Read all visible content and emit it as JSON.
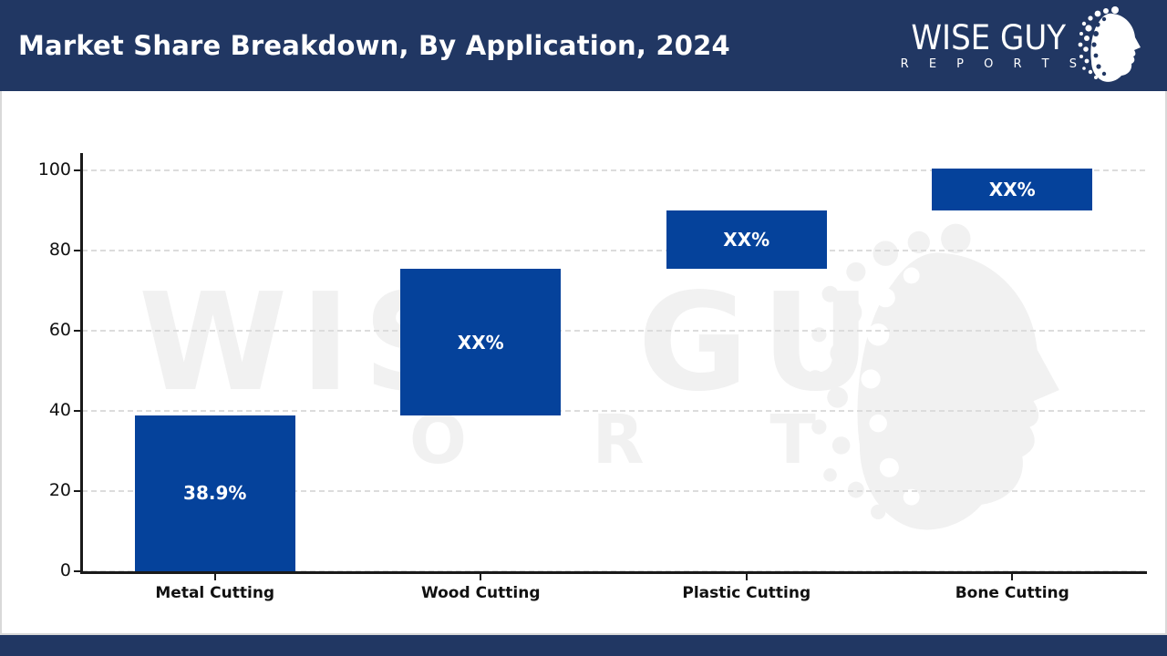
{
  "header": {
    "title": "Market Share Breakdown, By Application, 2024",
    "bg_color": "#213763",
    "logo": {
      "line1": "WISE GUY",
      "line2": "R E P O R T S"
    }
  },
  "watermark": {
    "line1": "WISE GUY",
    "line2": "P O R T S"
  },
  "footer": {
    "bg_color": "#213763"
  },
  "chart_data": {
    "type": "bar",
    "subtype": "waterfall",
    "title": "Market Share Breakdown, By Application, 2024",
    "categories": [
      "Metal Cutting",
      "Wood Cutting",
      "Plastic Cutting",
      "Bone Cutting"
    ],
    "segments": [
      {
        "category": "Metal Cutting",
        "start": 0,
        "end": 38.9,
        "label": "38.9%"
      },
      {
        "category": "Wood Cutting",
        "start": 38.9,
        "end": 75.4,
        "label": "XX%"
      },
      {
        "category": "Plastic Cutting",
        "start": 75.4,
        "end": 90.0,
        "label": "XX%"
      },
      {
        "category": "Bone Cutting",
        "start": 90.0,
        "end": 100.5,
        "label": "XX%"
      }
    ],
    "yticks": [
      0,
      20,
      40,
      60,
      80,
      100
    ],
    "ylim": [
      0,
      105
    ],
    "xlabel": "",
    "ylabel": "",
    "bar_color": "#05429B",
    "bar_label_color": "#ffffff",
    "grid": "horizontal dashed",
    "legend": "none"
  }
}
